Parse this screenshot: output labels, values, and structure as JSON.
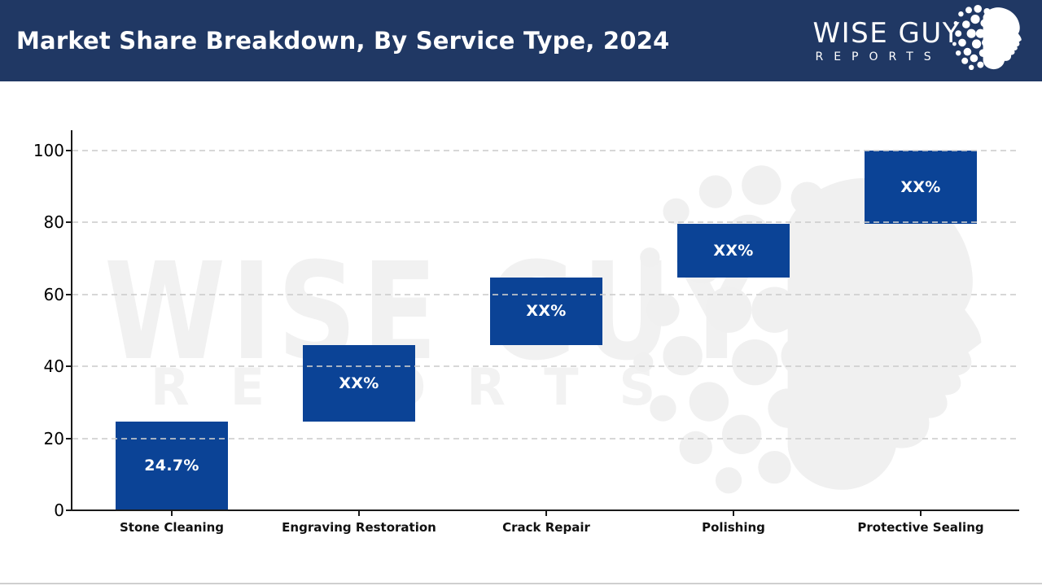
{
  "header": {
    "title": "Market Share Breakdown, By Service Type, 2024",
    "logo": {
      "line1": "WISE GUY",
      "line2": "REPORTS"
    }
  },
  "watermark": {
    "line1": "WISE GUY",
    "line2": "REPORTS"
  },
  "colors": {
    "header_bg": "#203864",
    "bar": "#0b4396",
    "bar_label": "#ffffff",
    "gridline": "#d9d9d9",
    "axis": "#1a1a1a",
    "watermark": "#f1f1f1"
  },
  "chart_data": {
    "type": "bar",
    "subtype": "waterfall",
    "title": "Market Share Breakdown, By Service Type, 2024",
    "unit": "%",
    "categories": [
      "Stone Cleaning",
      "Engraving Restoration",
      "Crack Repair",
      "Polishing",
      "Protective Sealing"
    ],
    "segments": [
      {
        "category": "Stone Cleaning",
        "start": 0,
        "end": 24.7,
        "label": "24.7%"
      },
      {
        "category": "Engraving Restoration",
        "start": 24.7,
        "end": 46.0,
        "label": "XX%"
      },
      {
        "category": "Crack Repair",
        "start": 46.0,
        "end": 64.7,
        "label": "XX%"
      },
      {
        "category": "Polishing",
        "start": 64.7,
        "end": 79.7,
        "label": "XX%"
      },
      {
        "category": "Protective Sealing",
        "start": 79.7,
        "end": 100,
        "label": "XX%"
      }
    ],
    "xlabel": "",
    "ylabel": "",
    "yticks": [
      0,
      20,
      40,
      60,
      80,
      100
    ],
    "ylim": [
      0,
      105
    ],
    "grid": "horizontal-dashed",
    "legend": "none"
  }
}
